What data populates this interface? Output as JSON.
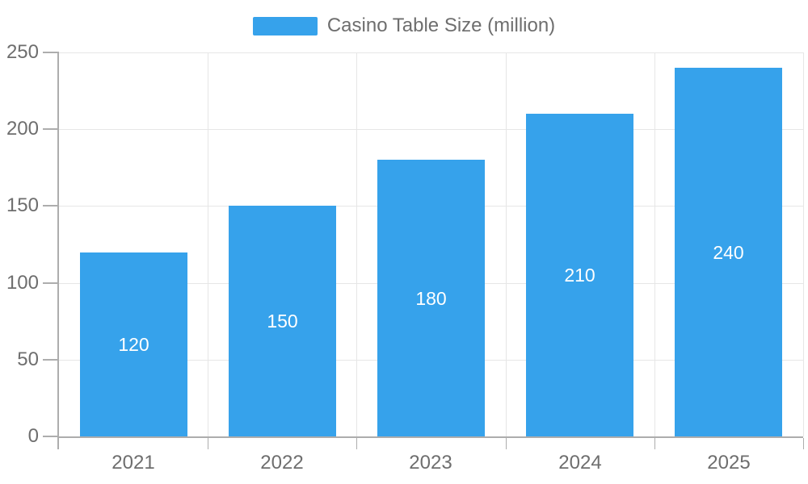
{
  "legend": {
    "label": "Casino Table Size (million)"
  },
  "chart_data": {
    "type": "bar",
    "title": "Casino Table Size (million)",
    "categories": [
      "2021",
      "2022",
      "2023",
      "2024",
      "2025"
    ],
    "values": [
      120,
      150,
      180,
      210,
      240
    ],
    "series": [
      {
        "name": "Casino Table Size (million)",
        "values": [
          120,
          150,
          180,
          210,
          240
        ]
      }
    ],
    "xlabel": "",
    "ylabel": "",
    "ylim": [
      0,
      250
    ],
    "yticks": [
      0,
      50,
      100,
      150,
      200,
      250
    ],
    "grid": true,
    "legend_position": "top-center",
    "value_labels": "inside-center"
  },
  "colors": {
    "bar": "#36A2EB",
    "axis": "#ADADAD",
    "grid": "#E6E6E6",
    "text": "#6E6E6E",
    "value_label": "#FFFFFF",
    "background": "#FFFFFF"
  }
}
